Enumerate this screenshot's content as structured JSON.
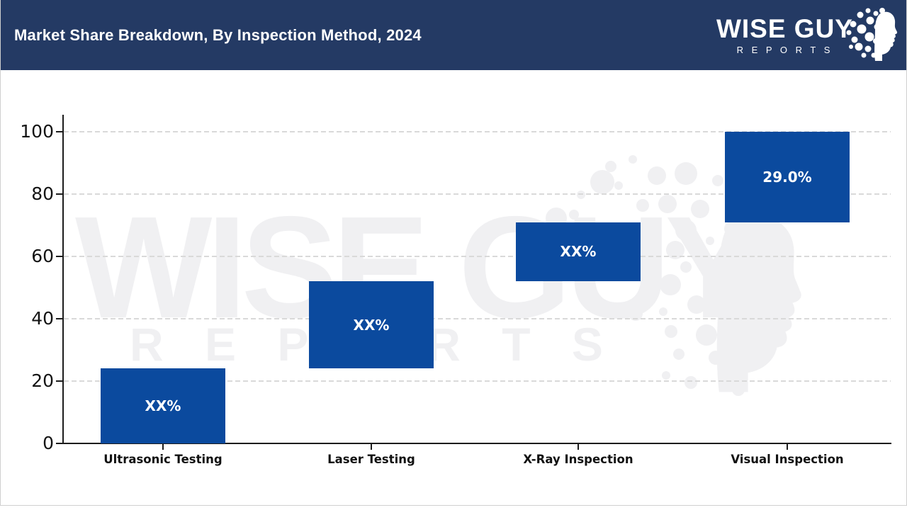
{
  "header": {
    "title": "Market Share Breakdown, By Inspection Method, 2024",
    "bg_color": "#243a64",
    "logo": {
      "line1": "WISE GUY",
      "line2": "R E P O R T S",
      "icon": "dotted-face-profile"
    }
  },
  "watermark": {
    "line1": "WISE GUY",
    "line2": "R E P O R T S",
    "color": "#f0f0f2"
  },
  "chart_data": {
    "type": "bar",
    "subtype": "waterfall-floating-segments",
    "title": "Market Share Breakdown, By Inspection Method, 2024",
    "categories": [
      "Ultrasonic Testing",
      "Laser Testing",
      "X-Ray Inspection",
      "Visual Inspection"
    ],
    "segments": [
      {
        "category": "Ultrasonic Testing",
        "start": 0,
        "end": 24,
        "label": "XX%"
      },
      {
        "category": "Laser Testing",
        "start": 24,
        "end": 52,
        "label": "XX%"
      },
      {
        "category": "X-Ray Inspection",
        "start": 52,
        "end": 71,
        "label": "XX%"
      },
      {
        "category": "Visual Inspection",
        "start": 71,
        "end": 100,
        "label": "29.0%"
      }
    ],
    "xlabel": "",
    "ylabel": "",
    "ylim": [
      0,
      105
    ],
    "yticks": [
      0,
      20,
      40,
      60,
      80,
      100
    ],
    "grid": "horizontal-dashed",
    "legend": "none",
    "bar_color": "#0b4a9e",
    "bar_label_color": "#ffffff",
    "axis_color": "#1c1c1c",
    "gridline_color": "#d9d9d9"
  }
}
